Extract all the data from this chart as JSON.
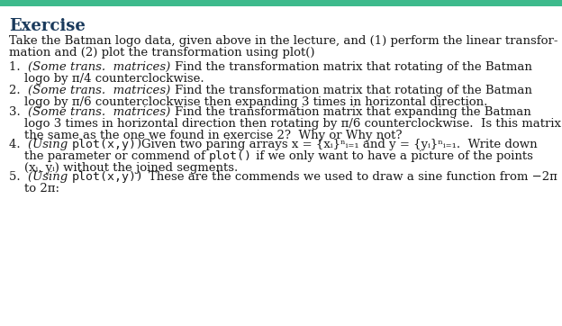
{
  "title": "Exercise",
  "title_color": "#1a3a5c",
  "bar_color": "#3dba8c",
  "background_color": "#ffffff",
  "text_color": "#1a1a1a",
  "bar_thickness": 4,
  "font_size_title": 13,
  "font_size_body": 9.5,
  "intro_line1": "Take the Batman logo data, given above in the lecture, and (1) perform the linear transfor-",
  "intro_line2": "mation and (2) plot the transformation using plot()",
  "items": [
    {
      "lines": [
        {
          "parts": [
            {
              "text": "1.  ",
              "style": "normal"
            },
            {
              "text": "(Some trans.  matrices) ",
              "style": "italic"
            },
            {
              "text": "Find the transformation matrix that rotating of the Batman",
              "style": "normal"
            }
          ]
        },
        {
          "parts": [
            {
              "text": "    logo by π/4 counterclockwise.",
              "style": "normal"
            }
          ]
        }
      ]
    },
    {
      "lines": [
        {
          "parts": [
            {
              "text": "2.  ",
              "style": "normal"
            },
            {
              "text": "(Some trans.  matrices) ",
              "style": "italic"
            },
            {
              "text": "Find the transformation matrix that rotating of the Batman",
              "style": "normal"
            }
          ]
        },
        {
          "parts": [
            {
              "text": "    logo by π/6 counterclockwise then expanding 3 times in horizontal direction.",
              "style": "normal"
            }
          ]
        }
      ]
    },
    {
      "lines": [
        {
          "parts": [
            {
              "text": "3.  ",
              "style": "normal"
            },
            {
              "text": "(Some trans.  matrices) ",
              "style": "italic"
            },
            {
              "text": "Find the transformation matrix that expanding the Batman",
              "style": "normal"
            }
          ]
        },
        {
          "parts": [
            {
              "text": "    logo 3 times in horizontal direction then rotating by π/6 counterclockwise.  Is this matrix",
              "style": "normal"
            }
          ]
        },
        {
          "parts": [
            {
              "text": "    the same as the one we found in exercise 2?  Why or Why not?",
              "style": "normal"
            }
          ]
        }
      ]
    },
    {
      "lines": [
        {
          "parts": [
            {
              "text": "4.  ",
              "style": "normal"
            },
            {
              "text": "(Using ",
              "style": "italic"
            },
            {
              "text": "plot(x,y)",
              "style": "mono"
            },
            {
              "text": ")",
              "style": "normal"
            },
            {
              "text": "Given two paring arrays x = {xᵢ}ⁿᵢ₌₁ and y = {yᵢ}ⁿᵢ₌₁.  Write down",
              "style": "normal"
            }
          ]
        },
        {
          "parts": [
            {
              "text": "    the parameter or commend of ",
              "style": "normal"
            },
            {
              "text": "plot()",
              "style": "mono"
            },
            {
              "text": " if we only want to have a picture of the points",
              "style": "normal"
            }
          ]
        },
        {
          "parts": [
            {
              "text": "    (xᵢ, yᵢ) without the joined segments.",
              "style": "normal"
            }
          ]
        }
      ]
    },
    {
      "lines": [
        {
          "parts": [
            {
              "text": "5.  ",
              "style": "normal"
            },
            {
              "text": "(Using ",
              "style": "italic"
            },
            {
              "text": "plot(x,y)",
              "style": "mono"
            },
            {
              "text": ")  ",
              "style": "normal"
            },
            {
              "text": "These are the commends we used to draw a sine function from −2π",
              "style": "normal"
            }
          ]
        },
        {
          "parts": [
            {
              "text": "    to 2π:",
              "style": "normal"
            }
          ]
        }
      ]
    }
  ]
}
